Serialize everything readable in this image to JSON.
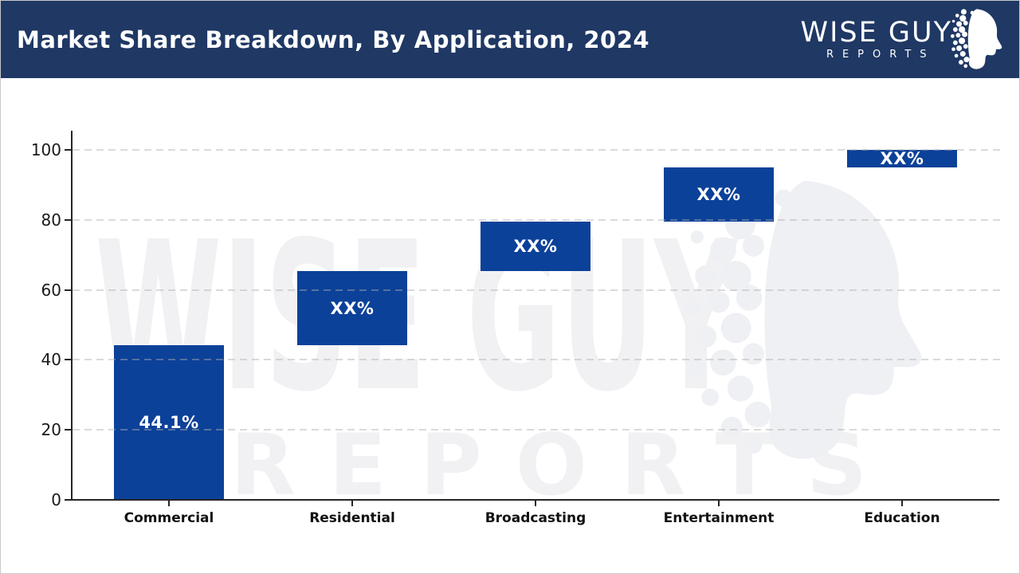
{
  "header": {
    "title": "Market Share Breakdown, By Application, 2024",
    "logo": {
      "wordmark": "WISE GUY",
      "subtext": "REPORTS"
    }
  },
  "watermark": {
    "line1": "WISE GUY",
    "line2": "REPORTS"
  },
  "chart_data": {
    "type": "bar",
    "subtype": "waterfall",
    "title": "Market Share Breakdown, By Application, 2024",
    "xlabel": "",
    "ylabel": "",
    "ylim": [
      0,
      100
    ],
    "yticks": [
      0,
      20,
      40,
      60,
      80,
      100
    ],
    "grid": "dashed horizontal gridlines",
    "legend": "none",
    "categories": [
      "Commercial",
      "Residential",
      "Broadcasting",
      "Entertainment",
      "Education"
    ],
    "segments": [
      {
        "category": "Commercial",
        "start": 0,
        "end": 44.1,
        "label": "44.1%"
      },
      {
        "category": "Residential",
        "start": 44.1,
        "end": 65.3,
        "label": "XX%"
      },
      {
        "category": "Broadcasting",
        "start": 65.3,
        "end": 79.5,
        "label": "XX%"
      },
      {
        "category": "Entertainment",
        "start": 79.5,
        "end": 95.0,
        "label": "XX%"
      },
      {
        "category": "Education",
        "start": 95.0,
        "end": 100.0,
        "label": "XX%"
      }
    ],
    "bar_color": "#0c4199",
    "bar_label_color": "#ffffff"
  },
  "colors": {
    "header_bg": "#1f3864",
    "bar": "#0c4199",
    "axis": "#262626",
    "grid": "#d9d9d9",
    "watermark": "#f1f1f4"
  }
}
